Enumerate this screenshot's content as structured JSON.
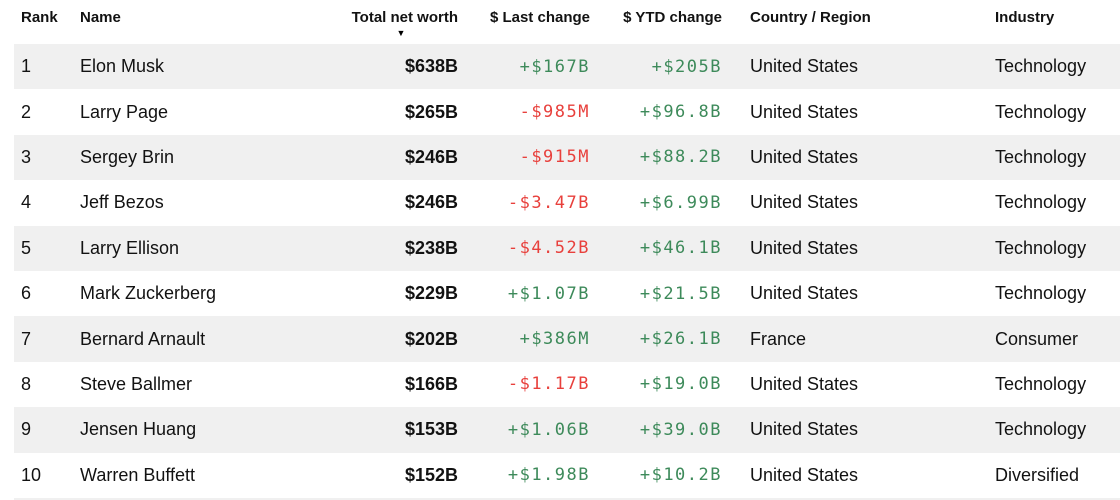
{
  "table": {
    "columns": [
      {
        "key": "rank",
        "label": "Rank",
        "align": "left"
      },
      {
        "key": "name",
        "label": "Name",
        "align": "left"
      },
      {
        "key": "net_worth",
        "label": "Total net worth",
        "align": "right",
        "sorted": "desc"
      },
      {
        "key": "last_change",
        "label": "$ Last change",
        "align": "right"
      },
      {
        "key": "ytd_change",
        "label": "$ YTD change",
        "align": "right"
      },
      {
        "key": "country",
        "label": "Country / Region",
        "align": "left"
      },
      {
        "key": "industry",
        "label": "Industry",
        "align": "left"
      }
    ],
    "rows": [
      {
        "rank": "1",
        "name": "Elon Musk",
        "net_worth": "$638B",
        "last_change": "+$167B",
        "ytd_change": "+$205B",
        "country": "United States",
        "industry": "Technology"
      },
      {
        "rank": "2",
        "name": "Larry Page",
        "net_worth": "$265B",
        "last_change": "-$985M",
        "ytd_change": "+$96.8B",
        "country": "United States",
        "industry": "Technology"
      },
      {
        "rank": "3",
        "name": "Sergey Brin",
        "net_worth": "$246B",
        "last_change": "-$915M",
        "ytd_change": "+$88.2B",
        "country": "United States",
        "industry": "Technology"
      },
      {
        "rank": "4",
        "name": "Jeff Bezos",
        "net_worth": "$246B",
        "last_change": "-$3.47B",
        "ytd_change": "+$6.99B",
        "country": "United States",
        "industry": "Technology"
      },
      {
        "rank": "5",
        "name": "Larry Ellison",
        "net_worth": "$238B",
        "last_change": "-$4.52B",
        "ytd_change": "+$46.1B",
        "country": "United States",
        "industry": "Technology"
      },
      {
        "rank": "6",
        "name": "Mark Zuckerberg",
        "net_worth": "$229B",
        "last_change": "+$1.07B",
        "ytd_change": "+$21.5B",
        "country": "United States",
        "industry": "Technology"
      },
      {
        "rank": "7",
        "name": "Bernard Arnault",
        "net_worth": "$202B",
        "last_change": "+$386M",
        "ytd_change": "+$26.1B",
        "country": "France",
        "industry": "Consumer"
      },
      {
        "rank": "8",
        "name": "Steve Ballmer",
        "net_worth": "$166B",
        "last_change": "-$1.17B",
        "ytd_change": "+$19.0B",
        "country": "United States",
        "industry": "Technology"
      },
      {
        "rank": "9",
        "name": "Jensen Huang",
        "net_worth": "$153B",
        "last_change": "+$1.06B",
        "ytd_change": "+$39.0B",
        "country": "United States",
        "industry": "Technology"
      },
      {
        "rank": "10",
        "name": "Warren Buffett",
        "net_worth": "$152B",
        "last_change": "+$1.98B",
        "ytd_change": "+$10.2B",
        "country": "United States",
        "industry": "Diversified"
      }
    ]
  },
  "icons": {
    "sort_desc": "▼"
  },
  "colors": {
    "positive": "#3d8a5a",
    "negative": "#e8403c",
    "stripe": "#f0f0f0",
    "text": "#121212"
  }
}
